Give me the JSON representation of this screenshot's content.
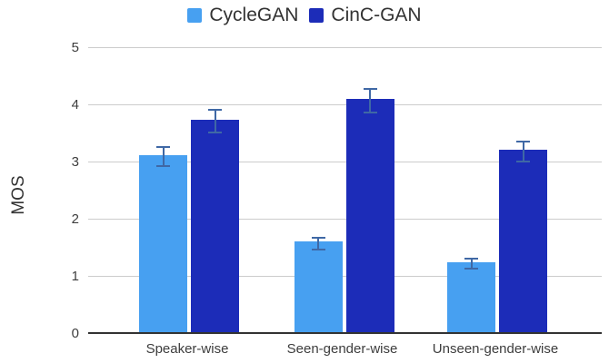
{
  "chart_data": {
    "type": "bar",
    "title": "",
    "xlabel": "",
    "ylabel": "MOS",
    "ylim": [
      0,
      5
    ],
    "yticks": [
      0,
      1,
      2,
      3,
      4,
      5
    ],
    "grid": true,
    "legend_position": "top-center",
    "categories": [
      "Speaker-wise",
      "Seen-gender-wise",
      "Unseen-gender-wise"
    ],
    "series": [
      {
        "name": "CycleGAN",
        "color": "#47A0F1",
        "values": [
          3.1,
          1.58,
          1.23
        ],
        "errors": [
          0.17,
          0.1,
          0.09
        ]
      },
      {
        "name": "CinC-GAN",
        "color": "#1C2CB8",
        "values": [
          3.72,
          4.08,
          3.19
        ],
        "errors": [
          0.2,
          0.21,
          0.18
        ]
      }
    ],
    "error_bar_color": "#3F68A5",
    "gridline_color": "#cccccc",
    "axis_line_color": "#333333",
    "tick_text_color": "#3d3d3d",
    "legend_text_color": "#333333",
    "background_color": "#ffffff"
  }
}
